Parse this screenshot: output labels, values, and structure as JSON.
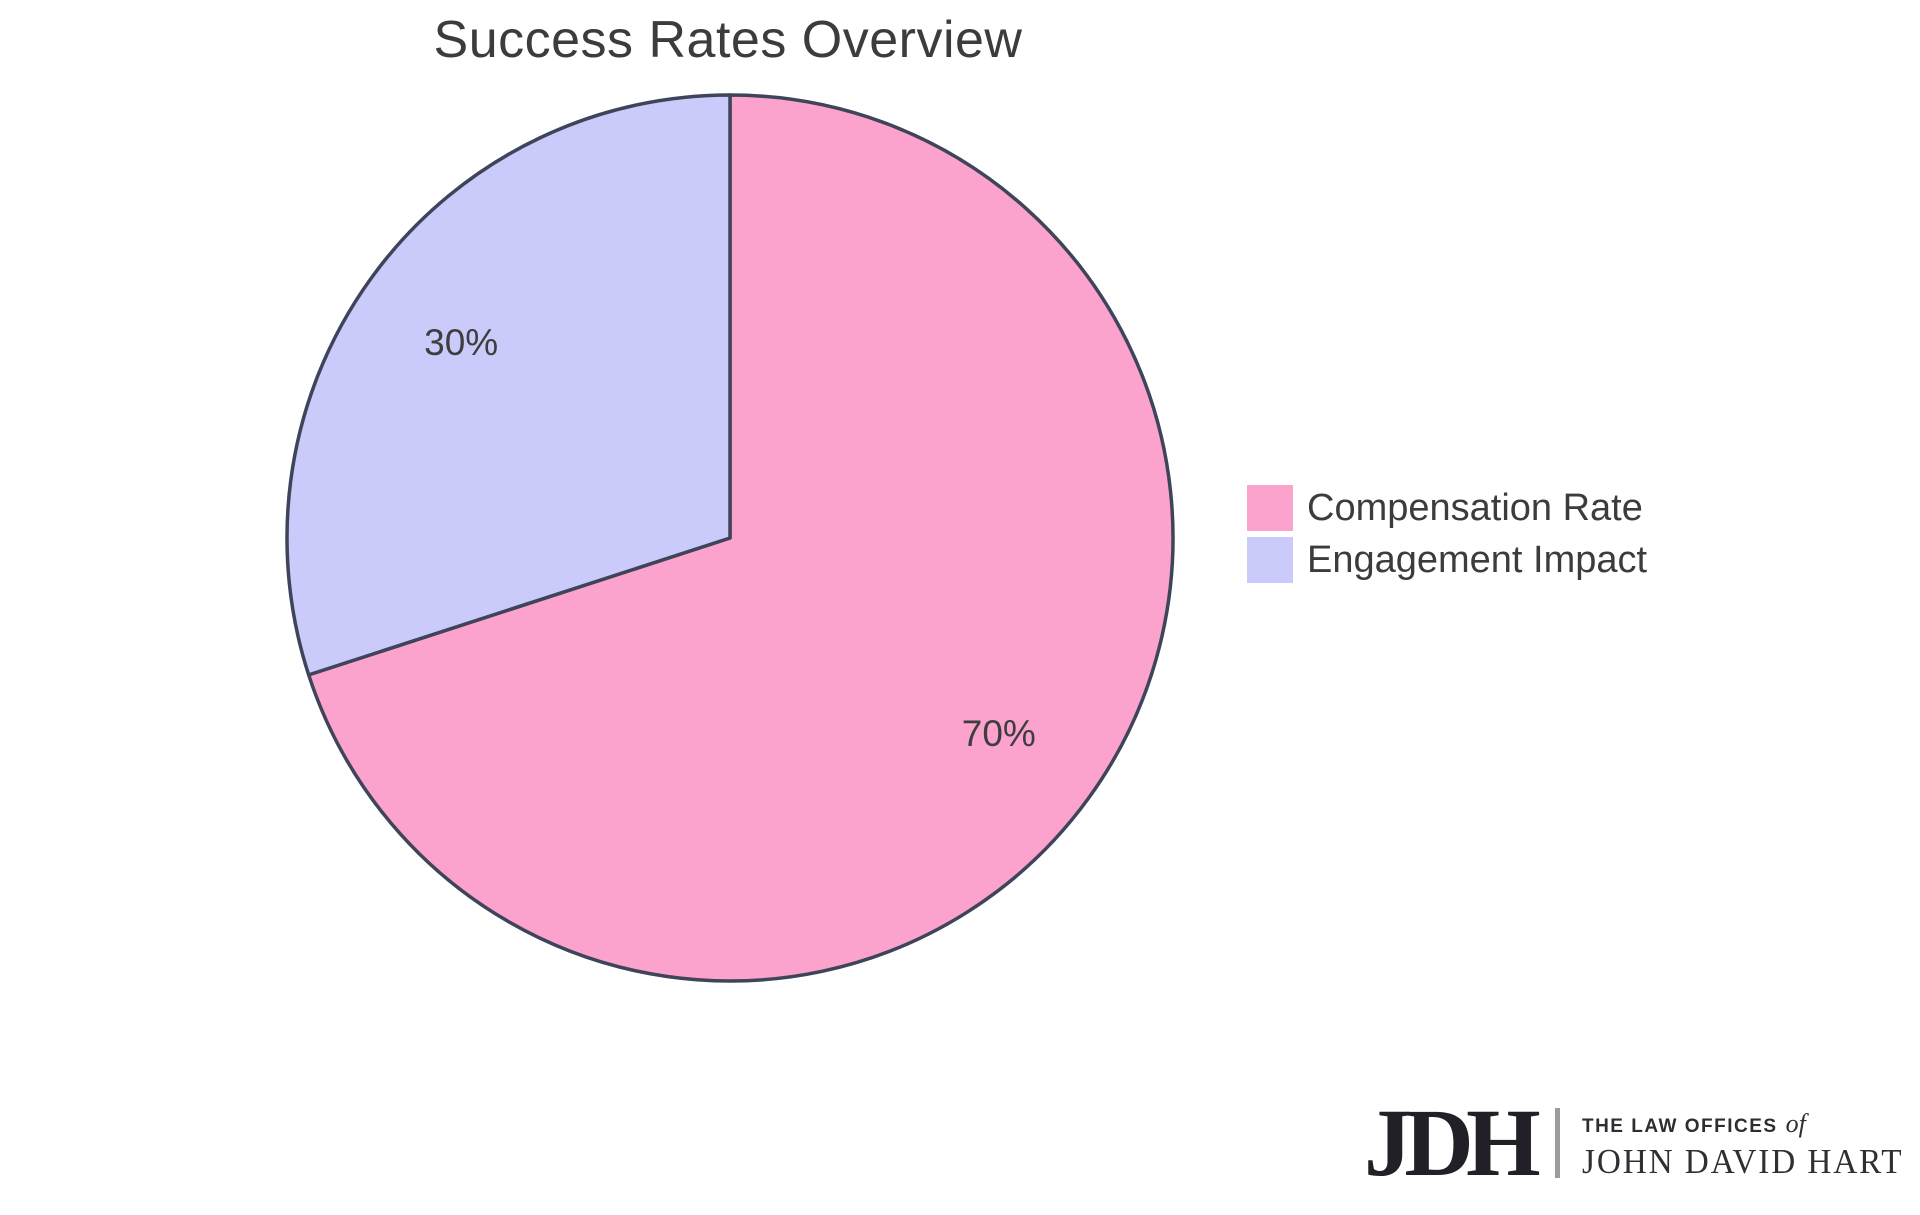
{
  "title": "Success Rates Overview",
  "chart_data": {
    "type": "pie",
    "labels": [
      "Compensation Rate",
      "Engagement Impact"
    ],
    "values": [
      70,
      30
    ],
    "slice_labels": [
      "70%",
      "30%"
    ],
    "colors": [
      "#FBA2CD",
      "#CACBFA"
    ],
    "stroke_color": "#3E4459",
    "stroke_width": 3.5,
    "start_angle_deg": -90,
    "direction": "clockwise",
    "legend_position": "right",
    "label_color": "#3E3E3E",
    "title_color": "#3C3C3C"
  },
  "legend": {
    "items": [
      {
        "label": "Compensation Rate",
        "color": "#FBA2CD"
      },
      {
        "label": "Engagement Impact",
        "color": "#CACBFA"
      }
    ]
  },
  "logo": {
    "monogram": "JDH",
    "tagline_prefix": "THE LAW OFFICES",
    "tagline_of": "of",
    "firm_name": "JOHN DAVID HART"
  }
}
